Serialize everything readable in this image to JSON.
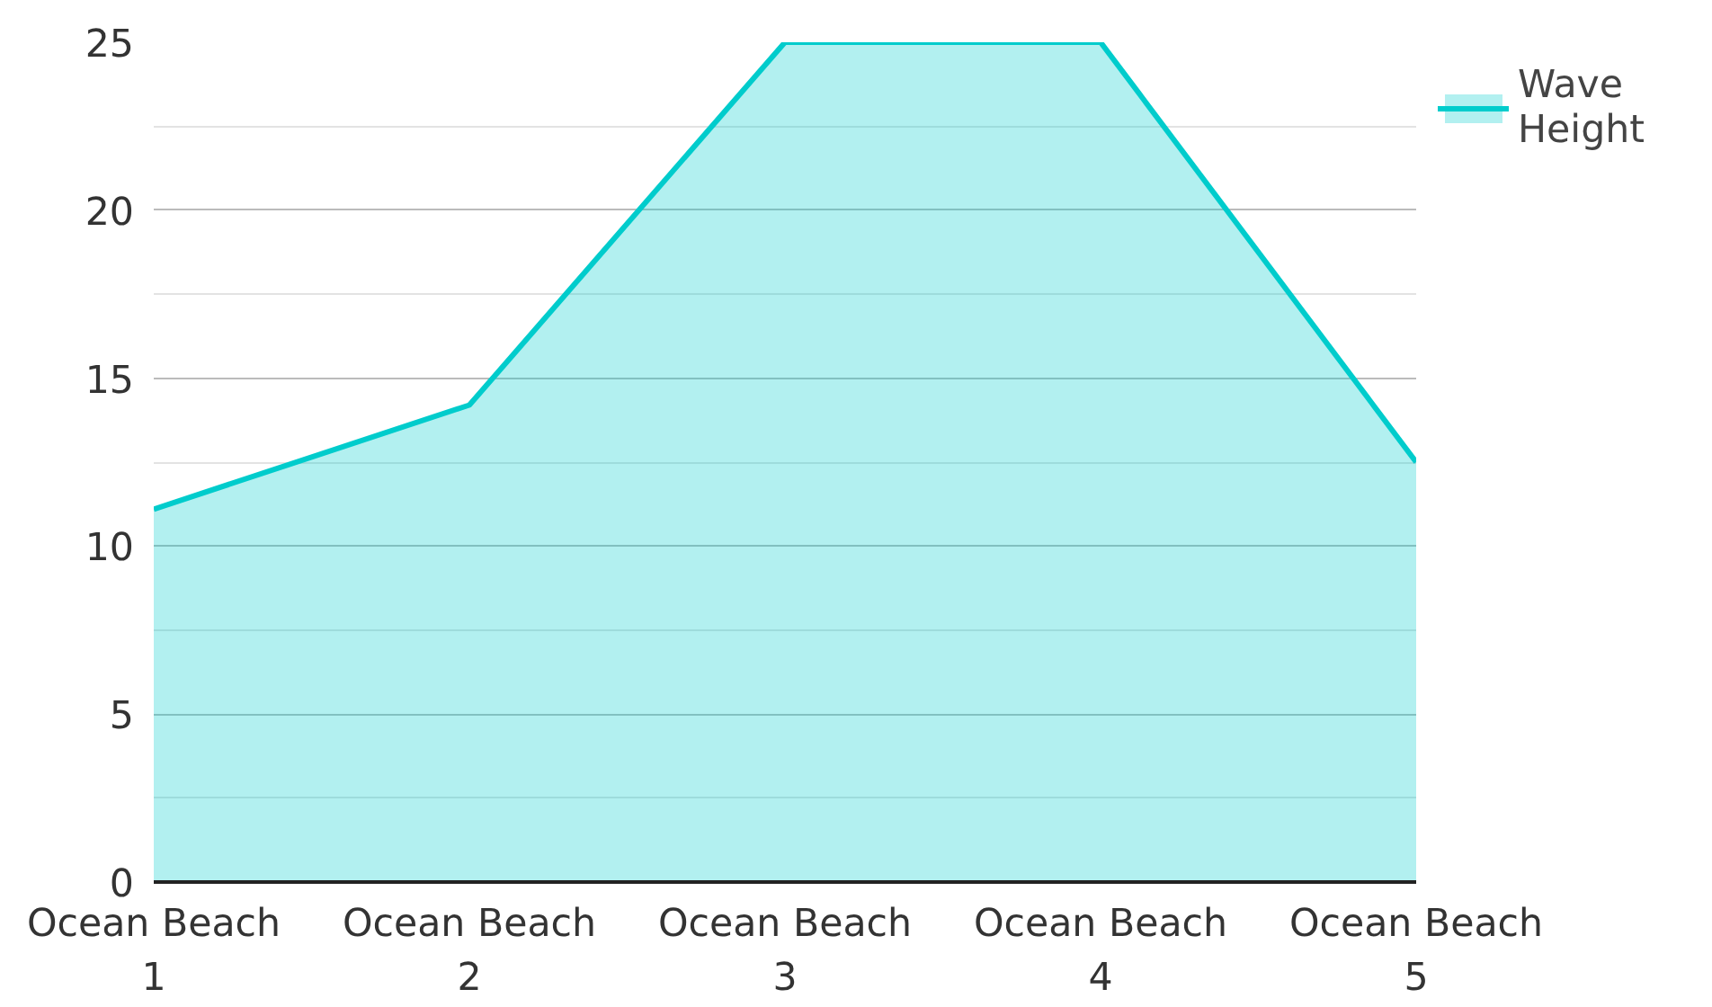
{
  "chart_data": {
    "type": "area",
    "categories": [
      "Ocean Beach 1",
      "Ocean Beach 2",
      "Ocean Beach 3",
      "Ocean Beach 4",
      "Ocean Beach 5"
    ],
    "series": [
      {
        "name": "Wave Height",
        "color": "#00cccc",
        "values": [
          11.1,
          14.2,
          25,
          25,
          12.5
        ]
      }
    ],
    "ylim": [
      0,
      25
    ],
    "yticks": [
      0,
      5,
      10,
      15,
      20,
      25
    ],
    "grid": "y",
    "legend": "top right"
  }
}
